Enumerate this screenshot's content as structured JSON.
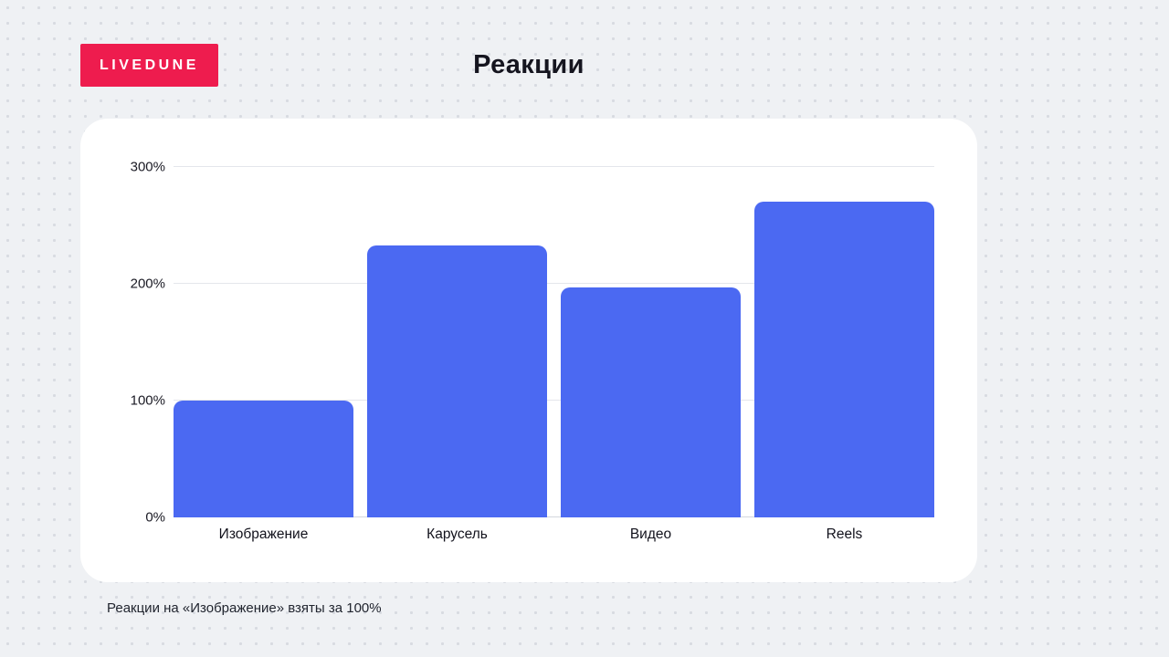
{
  "logo": {
    "text": "LIVEDUNE"
  },
  "title": "Реакции",
  "caption": "Реакции на «Изображение» взяты за 100%",
  "colors": {
    "background": "#eff1f4",
    "card": "#ffffff",
    "logo_bg": "#ee1c4e",
    "bar": "#4b69f2"
  },
  "chart_data": {
    "type": "bar",
    "title": "Реакции",
    "categories": [
      "Изображение",
      "Карусель",
      "Видео",
      "Reels"
    ],
    "values": [
      100,
      233,
      197,
      270
    ],
    "unit": "%",
    "xlabel": "",
    "ylabel": "",
    "ylim": [
      0,
      300
    ],
    "yticks": [
      0,
      100,
      200,
      300
    ],
    "ytick_labels": [
      "0%",
      "100%",
      "200%",
      "300%"
    ],
    "grid": true,
    "legend": false,
    "annotation": "Реакции на «Изображение» взяты за 100%"
  }
}
